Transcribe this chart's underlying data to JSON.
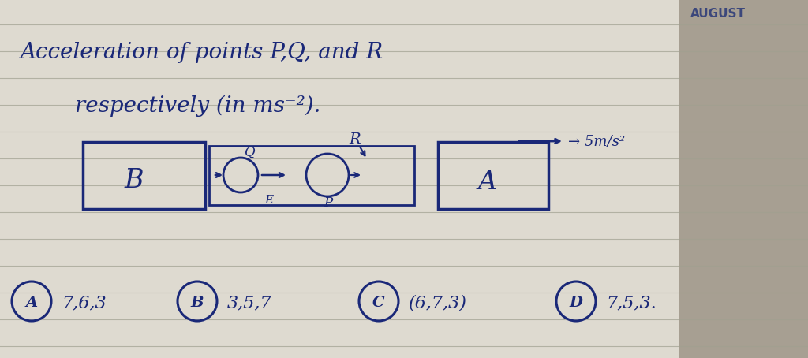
{
  "background_color": "#c8c4b0",
  "page_color": "#dedad0",
  "line_color": "#a0a090",
  "text_color": "#1a2878",
  "shadow_color": "#6a6050",
  "title_line1": "Acceleration of points P,Q, and R",
  "title_line2": "respectively (in ms⁻²).",
  "header_text": "AUGUST",
  "option_A": "A",
  "option_B": "B",
  "option_C": "C",
  "option_D": "D",
  "answer_A": "7,6,3",
  "answer_B": "3,5,7",
  "answer_C": "(6,7,3)",
  "answer_D": "7,5,3.",
  "arrow_label": "→ 5m/s²",
  "label_R": "R",
  "label_Q": "Q",
  "label_P": "P",
  "label_E": "E",
  "label_B": "B",
  "label_A": "A"
}
